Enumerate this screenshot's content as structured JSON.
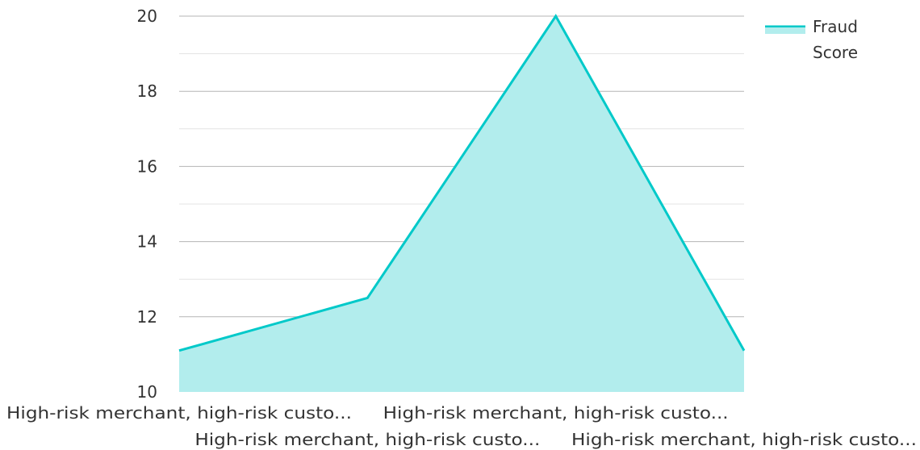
{
  "chart_data": {
    "type": "area",
    "categories": [
      "High-risk merchant, high-risk custo...",
      "High-risk merchant, high-risk custo...",
      "High-risk merchant, high-risk custo...",
      "High-risk merchant, high-risk custo..."
    ],
    "series": [
      {
        "name": "Fraud Score",
        "values": [
          11.1,
          12.5,
          20,
          11.1
        ],
        "color": "#00c9c9",
        "fill": "#b2eded"
      }
    ],
    "title": "",
    "xlabel": "",
    "ylabel": "",
    "ylim": [
      10,
      20
    ],
    "yticks": [
      "10",
      "12",
      "14",
      "16",
      "18",
      "20"
    ],
    "grid": true,
    "legend": {
      "position": "top-right",
      "lines": [
        "Fraud",
        "Score"
      ]
    },
    "colors": {
      "line": "#00c9c9",
      "area": "#b2eded",
      "grid_major": "#b5b5b5",
      "grid_minor": "#e3e3e3",
      "text": "#333333"
    }
  }
}
